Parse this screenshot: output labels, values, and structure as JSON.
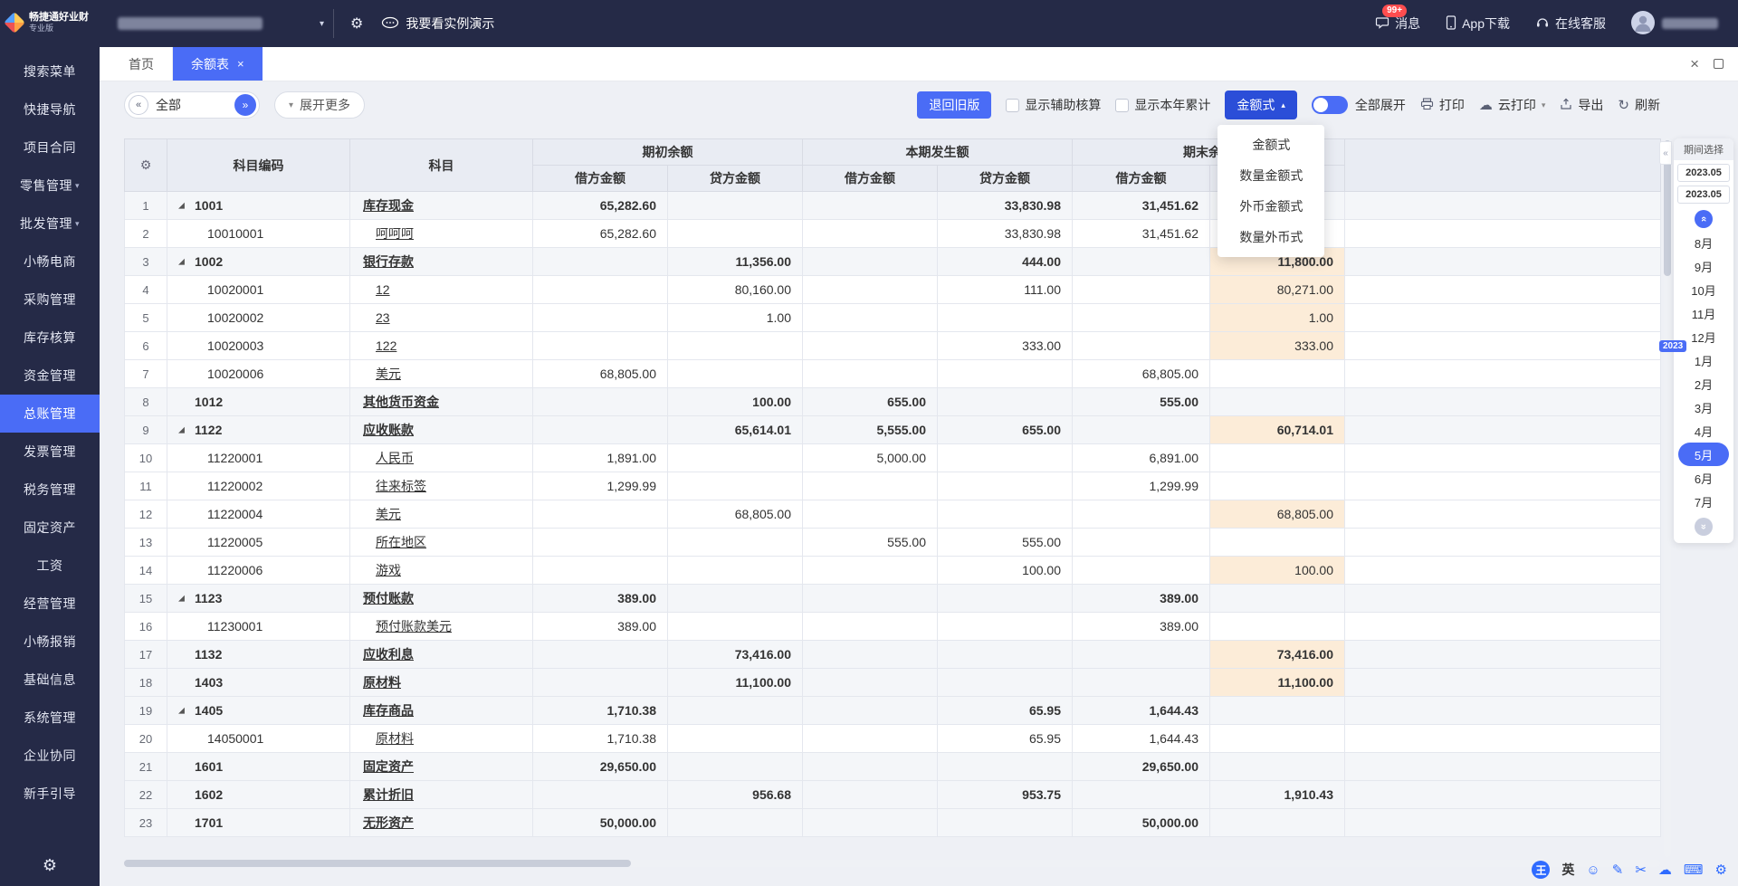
{
  "app": {
    "logo_title": "畅捷通好业财",
    "logo_subtitle": "专业版"
  },
  "topbar": {
    "demo_label": "我要看实例演示",
    "messages_label": "消息",
    "messages_badge": "99+",
    "app_download_label": "App下载",
    "service_label": "在线客服"
  },
  "sidebar": {
    "items": [
      {
        "label": "搜索菜单"
      },
      {
        "label": "快捷导航"
      },
      {
        "label": "项目合同"
      },
      {
        "label": "零售管理",
        "caret": true
      },
      {
        "label": "批发管理",
        "caret": true
      },
      {
        "label": "小畅电商"
      },
      {
        "label": "采购管理"
      },
      {
        "label": "库存核算"
      },
      {
        "label": "资金管理"
      },
      {
        "label": "总账管理",
        "active": true
      },
      {
        "label": "发票管理"
      },
      {
        "label": "税务管理"
      },
      {
        "label": "固定资产"
      },
      {
        "label": "工资"
      },
      {
        "label": "经营管理"
      },
      {
        "label": "小畅报销"
      },
      {
        "label": "基础信息"
      },
      {
        "label": "系统管理"
      },
      {
        "label": "企业协同"
      },
      {
        "label": "新手引导"
      }
    ]
  },
  "tabs": [
    {
      "label": "首页",
      "active": false
    },
    {
      "label": "余额表",
      "active": true,
      "closable": true
    }
  ],
  "toolbar": {
    "scope_value": "全部",
    "expand_more_label": "展开更多",
    "back_old_label": "退回旧版",
    "show_aux_label": "显示辅助核算",
    "show_ytd_label": "显示本年累计",
    "amount_style_label": "金额式",
    "expand_all_label": "全部展开",
    "print_label": "打印",
    "cloud_print_label": "云打印",
    "export_label": "导出",
    "refresh_label": "刷新"
  },
  "style_menu": {
    "items": [
      {
        "label": "金额式"
      },
      {
        "label": "数量金额式"
      },
      {
        "label": "外币金额式"
      },
      {
        "label": "数量外币式"
      }
    ]
  },
  "table": {
    "code_header": "科目编码",
    "name_header": "科目",
    "debit_header": "借方金额",
    "credit_header": "贷方金额",
    "groups": [
      {
        "label": "期初余额"
      },
      {
        "label": "本期发生额"
      },
      {
        "label": "期末余额"
      }
    ],
    "rows": [
      {
        "num": "1",
        "code": "1001",
        "name": "库存现金",
        "bold": true,
        "exp": true,
        "child": false,
        "hl": false,
        "c": [
          "65,282.60",
          "",
          "",
          "33,830.98",
          "31,451.62",
          ""
        ]
      },
      {
        "num": "2",
        "code": "10010001",
        "name": "呵呵呵",
        "bold": false,
        "exp": false,
        "child": true,
        "hl": false,
        "c": [
          "65,282.60",
          "",
          "",
          "33,830.98",
          "31,451.62",
          ""
        ]
      },
      {
        "num": "3",
        "code": "1002",
        "name": "银行存款",
        "bold": true,
        "exp": true,
        "child": false,
        "hl": true,
        "c": [
          "",
          "11,356.00",
          "",
          "444.00",
          "",
          "11,800.00"
        ]
      },
      {
        "num": "4",
        "code": "10020001",
        "name": "12",
        "bold": false,
        "exp": false,
        "child": true,
        "hl": true,
        "c": [
          "",
          "80,160.00",
          "",
          "111.00",
          "",
          "80,271.00"
        ]
      },
      {
        "num": "5",
        "code": "10020002",
        "name": "23",
        "bold": false,
        "exp": false,
        "child": true,
        "hl": true,
        "c": [
          "",
          "1.00",
          "",
          "",
          "",
          "1.00"
        ]
      },
      {
        "num": "6",
        "code": "10020003",
        "name": "122",
        "bold": false,
        "exp": false,
        "child": true,
        "hl": true,
        "c": [
          "",
          "",
          "",
          "333.00",
          "",
          "333.00"
        ]
      },
      {
        "num": "7",
        "code": "10020006",
        "name": "美元",
        "bold": false,
        "exp": false,
        "child": true,
        "hl": false,
        "c": [
          "68,805.00",
          "",
          "",
          "",
          "68,805.00",
          ""
        ]
      },
      {
        "num": "8",
        "code": "1012",
        "name": "其他货币资金",
        "bold": true,
        "exp": false,
        "child": false,
        "hl": false,
        "c": [
          "",
          "100.00",
          "655.00",
          "",
          "555.00",
          ""
        ]
      },
      {
        "num": "9",
        "code": "1122",
        "name": "应收账款",
        "bold": true,
        "exp": true,
        "child": false,
        "hl": true,
        "c": [
          "",
          "65,614.01",
          "5,555.00",
          "655.00",
          "",
          "60,714.01"
        ]
      },
      {
        "num": "10",
        "code": "11220001",
        "name": "人民币",
        "bold": false,
        "exp": false,
        "child": true,
        "hl": false,
        "c": [
          "1,891.00",
          "",
          "5,000.00",
          "",
          "6,891.00",
          ""
        ]
      },
      {
        "num": "11",
        "code": "11220002",
        "name": "往来标签",
        "bold": false,
        "exp": false,
        "child": true,
        "hl": false,
        "c": [
          "1,299.99",
          "",
          "",
          "",
          "1,299.99",
          ""
        ]
      },
      {
        "num": "12",
        "code": "11220004",
        "name": "美元",
        "bold": false,
        "exp": false,
        "child": true,
        "hl": true,
        "c": [
          "",
          "68,805.00",
          "",
          "",
          "",
          "68,805.00"
        ]
      },
      {
        "num": "13",
        "code": "11220005",
        "name": "所在地区",
        "bold": false,
        "exp": false,
        "child": true,
        "hl": false,
        "c": [
          "",
          "",
          "555.00",
          "555.00",
          "",
          ""
        ]
      },
      {
        "num": "14",
        "code": "11220006",
        "name": "游戏",
        "bold": false,
        "exp": false,
        "child": true,
        "hl": true,
        "c": [
          "",
          "",
          "",
          "100.00",
          "",
          "100.00"
        ]
      },
      {
        "num": "15",
        "code": "1123",
        "name": "预付账款",
        "bold": true,
        "exp": true,
        "child": false,
        "hl": false,
        "c": [
          "389.00",
          "",
          "",
          "",
          "389.00",
          ""
        ]
      },
      {
        "num": "16",
        "code": "11230001",
        "name": "预付账款美元",
        "bold": false,
        "exp": false,
        "child": true,
        "hl": false,
        "c": [
          "389.00",
          "",
          "",
          "",
          "389.00",
          ""
        ]
      },
      {
        "num": "17",
        "code": "1132",
        "name": "应收利息",
        "bold": true,
        "exp": false,
        "child": false,
        "hl": true,
        "c": [
          "",
          "73,416.00",
          "",
          "",
          "",
          "73,416.00"
        ]
      },
      {
        "num": "18",
        "code": "1403",
        "name": "原材料",
        "bold": true,
        "exp": false,
        "child": false,
        "hl": true,
        "c": [
          "",
          "11,100.00",
          "",
          "",
          "",
          "11,100.00"
        ]
      },
      {
        "num": "19",
        "code": "1405",
        "name": "库存商品",
        "bold": true,
        "exp": true,
        "child": false,
        "hl": false,
        "c": [
          "1,710.38",
          "",
          "",
          "65.95",
          "1,644.43",
          ""
        ]
      },
      {
        "num": "20",
        "code": "14050001",
        "name": "原材料",
        "bold": false,
        "exp": false,
        "child": true,
        "hl": false,
        "c": [
          "1,710.38",
          "",
          "",
          "65.95",
          "1,644.43",
          ""
        ]
      },
      {
        "num": "21",
        "code": "1601",
        "name": "固定资产",
        "bold": true,
        "exp": false,
        "child": false,
        "hl": false,
        "c": [
          "29,650.00",
          "",
          "",
          "",
          "29,650.00",
          ""
        ]
      },
      {
        "num": "22",
        "code": "1602",
        "name": "累计折旧",
        "bold": true,
        "exp": false,
        "child": false,
        "hl": false,
        "c": [
          "",
          "956.68",
          "",
          "953.75",
          "",
          "1,910.43"
        ]
      },
      {
        "num": "23",
        "code": "1701",
        "name": "无形资产",
        "bold": true,
        "exp": false,
        "child": false,
        "hl": false,
        "c": [
          "50,000.00",
          "",
          "",
          "",
          "50,000.00",
          ""
        ]
      }
    ]
  },
  "period_panel": {
    "title": "期间选择",
    "date_from": "2023.05",
    "date_to": "2023.05",
    "year_badge": "2023",
    "year_after_index": 4,
    "months": [
      {
        "label": "8月"
      },
      {
        "label": "9月"
      },
      {
        "label": "10月"
      },
      {
        "label": "11月"
      },
      {
        "label": "12月"
      },
      {
        "label": "1月"
      },
      {
        "label": "2月"
      },
      {
        "label": "3月"
      },
      {
        "label": "4月"
      },
      {
        "label": "5月",
        "selected": true
      },
      {
        "label": "6月"
      },
      {
        "label": "7月"
      }
    ]
  },
  "ime": {
    "lang": "英"
  },
  "colors": {
    "accent": "#4a6cf6",
    "accent_dark": "#2b4ed8",
    "highlight_cell": "#fcecd8",
    "sidebar_bg": "#252a47",
    "badge_red": "#ff4d4f"
  }
}
